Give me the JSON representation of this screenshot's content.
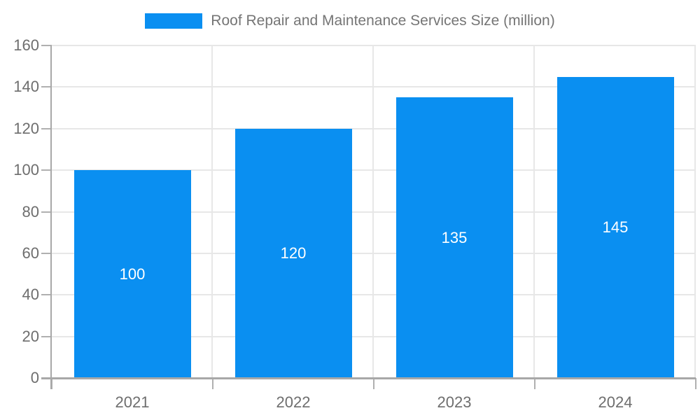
{
  "chart_data": {
    "type": "bar",
    "legend_label": "Roof Repair and Maintenance Services Size (million)",
    "legend_position": "top-center",
    "categories": [
      "2021",
      "2022",
      "2023",
      "2024"
    ],
    "values": [
      100,
      120,
      135,
      145
    ],
    "value_labels": [
      "100",
      "120",
      "135",
      "145"
    ],
    "value_label_position": "inside-center",
    "ylim": [
      0,
      160
    ],
    "ytick_step": 20,
    "ytick_labels": [
      "0",
      "20",
      "40",
      "60",
      "80",
      "100",
      "120",
      "140",
      "160"
    ],
    "grid": true,
    "xlabel": "",
    "ylabel": "",
    "colors": {
      "bar": "#0a8ff1",
      "value_label_text": "#ffffff",
      "axis_label_text": "#6e6e6e",
      "legend_text": "#757575",
      "gridline": "#e7e7e7",
      "axis_line": "#a8a8a8",
      "tick_line": "#b0b0b0",
      "background": "#ffffff"
    }
  }
}
